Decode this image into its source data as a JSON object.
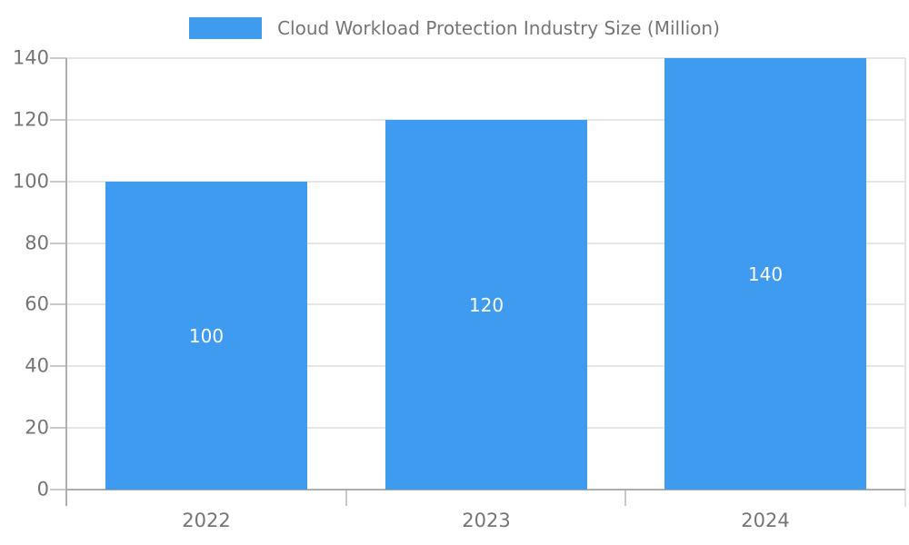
{
  "legend": {
    "label": "Cloud Workload Protection Industry Size (Million)"
  },
  "colors": {
    "bar": "#3E9BEF",
    "bar_label_text": "#ffffff",
    "axis_text": "#757575",
    "legend_text": "#757575",
    "axis_line": "#aeaeae",
    "gridline": "#e6e6e6",
    "tick": "#c9c9c9",
    "background": "#ffffff"
  },
  "chart_data": {
    "type": "bar",
    "title": "Cloud Workload Protection Industry Size (Million)",
    "categories": [
      "2022",
      "2023",
      "2024"
    ],
    "series": [
      {
        "name": "Cloud Workload Protection Industry Size (Million)",
        "values": [
          100,
          120,
          140
        ]
      }
    ],
    "bar_labels": [
      "100",
      "120",
      "140"
    ],
    "xlabel": "",
    "ylabel": "",
    "ylim": [
      0,
      140
    ],
    "yticks": [
      0,
      20,
      40,
      60,
      80,
      100,
      120,
      140
    ],
    "grid": true,
    "legend_position": "top"
  }
}
